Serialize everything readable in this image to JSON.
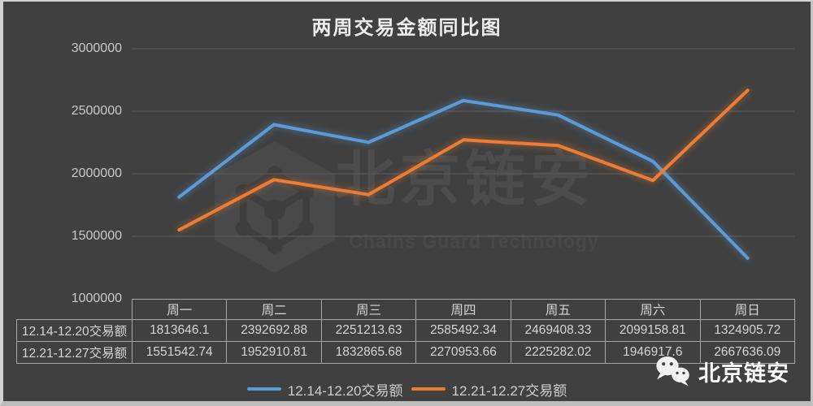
{
  "chart_data": {
    "type": "line",
    "title": "两周交易金额同比图",
    "categories": [
      "周一",
      "周二",
      "周三",
      "周四",
      "周五",
      "周六",
      "周日"
    ],
    "series": [
      {
        "name": "12.14-12.20交易额",
        "color": "#5B9BD5",
        "values": [
          1813646.1,
          2392692.88,
          2251213.63,
          2585492.34,
          2469408.33,
          2099158.81,
          1324905.72
        ]
      },
      {
        "name": "12.21-12.27交易额",
        "color": "#ED7D31",
        "values": [
          1551542.74,
          1952910.81,
          1832865.68,
          2270953.66,
          2225282.02,
          1946917.6,
          2667636.09
        ]
      }
    ],
    "ylim": [
      1000000,
      3000000
    ],
    "yticks": [
      3000000,
      2500000,
      2000000,
      1500000,
      1000000
    ],
    "grid": true,
    "legend_position": "bottom",
    "data_table_shown": true
  },
  "watermark": {
    "cn": "北京链安",
    "en": "Chains Guard Technology",
    "logo": "hexagon-molecule-icon"
  },
  "badge": {
    "label": "北京链安",
    "icon": "wechat-icon"
  },
  "colors": {
    "background": "#404040",
    "gridline": "#575757",
    "axis_text": "#C9C9C9",
    "table_border": "#A6A6A6",
    "table_text": "#D6D6D6",
    "title_text": "#EDEDED",
    "watermark_text": "#4C4C4C",
    "series_blue": "#5B9BD5",
    "series_orange": "#ED7D31"
  }
}
